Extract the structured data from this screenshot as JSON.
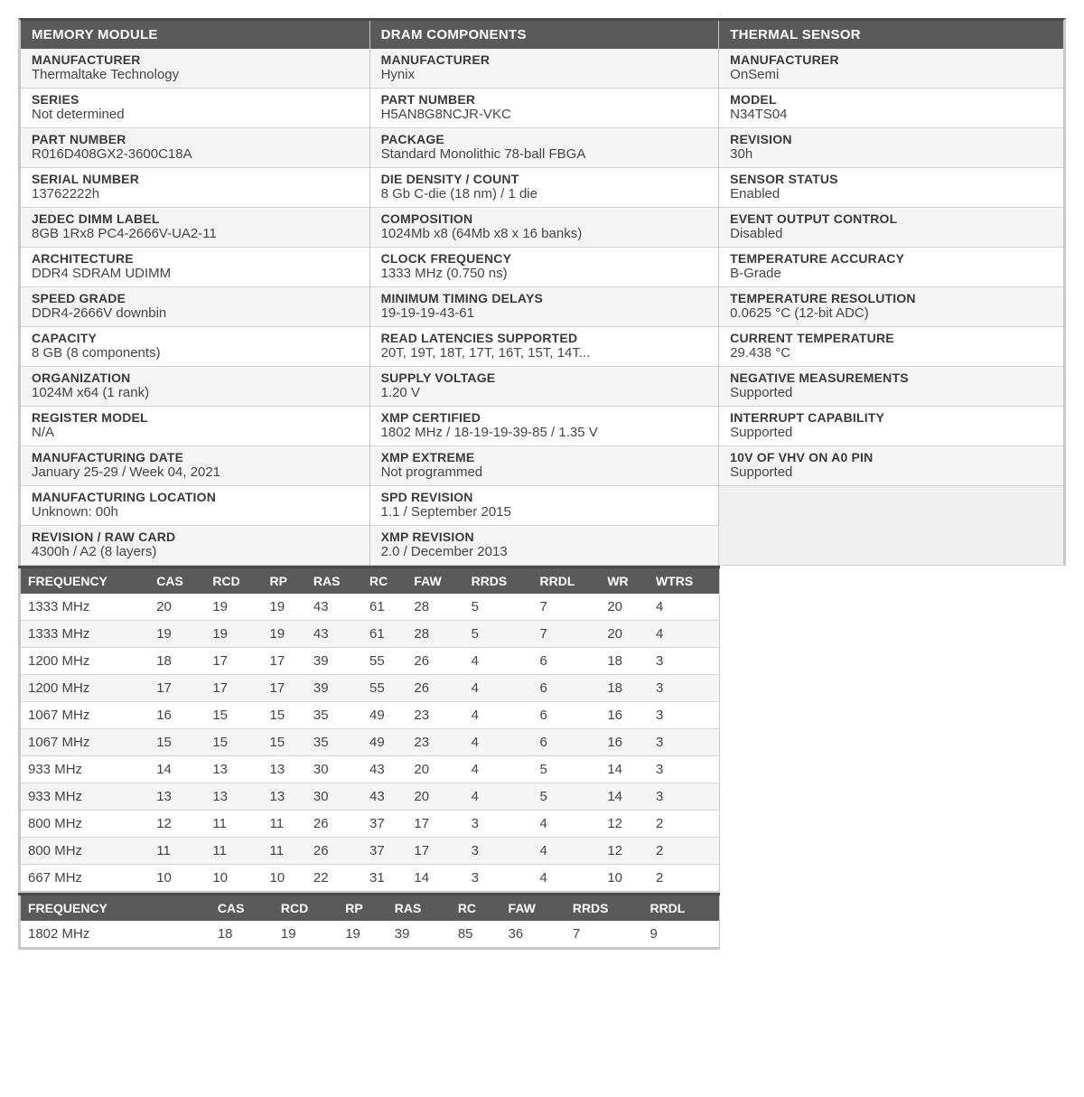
{
  "panels": {
    "memory": {
      "title": "MEMORY MODULE",
      "fields": [
        {
          "label": "MANUFACTURER",
          "value": "Thermaltake Technology"
        },
        {
          "label": "SERIES",
          "value": "Not determined"
        },
        {
          "label": "PART NUMBER",
          "value": "R016D408GX2-3600C18A"
        },
        {
          "label": "SERIAL NUMBER",
          "value": "13762222h"
        },
        {
          "label": "JEDEC DIMM LABEL",
          "value": "8GB 1Rx8 PC4-2666V-UA2-11"
        },
        {
          "label": "ARCHITECTURE",
          "value": "DDR4 SDRAM UDIMM"
        },
        {
          "label": "SPEED GRADE",
          "value": "DDR4-2666V downbin"
        },
        {
          "label": "CAPACITY",
          "value": "8 GB (8 components)"
        },
        {
          "label": "ORGANIZATION",
          "value": "1024M x64 (1 rank)"
        },
        {
          "label": "REGISTER MODEL",
          "value": "N/A"
        },
        {
          "label": "MANUFACTURING DATE",
          "value": "January 25-29 / Week 04, 2021"
        },
        {
          "label": "MANUFACTURING LOCATION",
          "value": "Unknown: 00h"
        },
        {
          "label": "REVISION / RAW CARD",
          "value": "4300h / A2 (8 layers)"
        }
      ]
    },
    "dram": {
      "title": "DRAM COMPONENTS",
      "fields": [
        {
          "label": "MANUFACTURER",
          "value": "Hynix"
        },
        {
          "label": "PART NUMBER",
          "value": "H5AN8G8NCJR-VKC"
        },
        {
          "label": "PACKAGE",
          "value": "Standard Monolithic 78-ball FBGA"
        },
        {
          "label": "DIE DENSITY / COUNT",
          "value": "8 Gb C-die (18 nm) / 1 die"
        },
        {
          "label": "COMPOSITION",
          "value": "1024Mb x8 (64Mb x8 x 16 banks)"
        },
        {
          "label": "CLOCK FREQUENCY",
          "value": "1333 MHz (0.750 ns)"
        },
        {
          "label": "MINIMUM TIMING DELAYS",
          "value": "19-19-19-43-61"
        },
        {
          "label": "READ LATENCIES SUPPORTED",
          "value": "20T, 19T, 18T, 17T, 16T, 15T, 14T..."
        },
        {
          "label": "SUPPLY VOLTAGE",
          "value": "1.20 V"
        },
        {
          "label": "XMP CERTIFIED",
          "value": "1802 MHz / 18-19-19-39-85 / 1.35 V"
        },
        {
          "label": "XMP EXTREME",
          "value": "Not programmed"
        },
        {
          "label": "SPD REVISION",
          "value": "1.1 / September 2015"
        },
        {
          "label": "XMP REVISION",
          "value": "2.0 / December 2013"
        }
      ]
    },
    "thermal": {
      "title": "THERMAL SENSOR",
      "fields": [
        {
          "label": "MANUFACTURER",
          "value": "OnSemi"
        },
        {
          "label": "MODEL",
          "value": "N34TS04"
        },
        {
          "label": "REVISION",
          "value": "30h"
        },
        {
          "label": "SENSOR STATUS",
          "value": "Enabled"
        },
        {
          "label": "EVENT OUTPUT CONTROL",
          "value": "Disabled"
        },
        {
          "label": "TEMPERATURE ACCURACY",
          "value": "B-Grade"
        },
        {
          "label": "TEMPERATURE RESOLUTION",
          "value": "0.0625 °C (12-bit ADC)"
        },
        {
          "label": "CURRENT TEMPERATURE",
          "value": "29.438 °C"
        },
        {
          "label": "NEGATIVE MEASUREMENTS",
          "value": "Supported"
        },
        {
          "label": "INTERRUPT CAPABILITY",
          "value": "Supported"
        },
        {
          "label": "10V OF VHV ON A0 PIN",
          "value": "Supported"
        }
      ]
    }
  },
  "timing_table": {
    "columns": [
      "FREQUENCY",
      "CAS",
      "RCD",
      "RP",
      "RAS",
      "RC",
      "FAW",
      "RRDS",
      "RRDL",
      "WR",
      "WTRS"
    ],
    "rows": [
      [
        "1333 MHz",
        "20",
        "19",
        "19",
        "43",
        "61",
        "28",
        "5",
        "7",
        "20",
        "4"
      ],
      [
        "1333 MHz",
        "19",
        "19",
        "19",
        "43",
        "61",
        "28",
        "5",
        "7",
        "20",
        "4"
      ],
      [
        "1200 MHz",
        "18",
        "17",
        "17",
        "39",
        "55",
        "26",
        "4",
        "6",
        "18",
        "3"
      ],
      [
        "1200 MHz",
        "17",
        "17",
        "17",
        "39",
        "55",
        "26",
        "4",
        "6",
        "18",
        "3"
      ],
      [
        "1067 MHz",
        "16",
        "15",
        "15",
        "35",
        "49",
        "23",
        "4",
        "6",
        "16",
        "3"
      ],
      [
        "1067 MHz",
        "15",
        "15",
        "15",
        "35",
        "49",
        "23",
        "4",
        "6",
        "16",
        "3"
      ],
      [
        "933 MHz",
        "14",
        "13",
        "13",
        "30",
        "43",
        "20",
        "4",
        "5",
        "14",
        "3"
      ],
      [
        "933 MHz",
        "13",
        "13",
        "13",
        "30",
        "43",
        "20",
        "4",
        "5",
        "14",
        "3"
      ],
      [
        "800 MHz",
        "12",
        "11",
        "11",
        "26",
        "37",
        "17",
        "3",
        "4",
        "12",
        "2"
      ],
      [
        "800 MHz",
        "11",
        "11",
        "11",
        "26",
        "37",
        "17",
        "3",
        "4",
        "12",
        "2"
      ],
      [
        "667 MHz",
        "10",
        "10",
        "10",
        "22",
        "31",
        "14",
        "3",
        "4",
        "10",
        "2"
      ]
    ]
  },
  "xmp_table": {
    "columns": [
      "FREQUENCY",
      "",
      "",
      "CAS",
      "RCD",
      "RP",
      "RAS",
      "RC",
      "FAW",
      "RRDS",
      "RRDL"
    ],
    "rows": [
      [
        "1802 MHz",
        "",
        "",
        "18",
        "19",
        "19",
        "39",
        "85",
        "36",
        "7",
        "9"
      ]
    ]
  },
  "colors": {
    "header_bg": "#5a5a5a",
    "header_text": "#ffffff",
    "row_alt_bg": "#f5f5f5",
    "border": "#c8c8c8",
    "text": "#444444"
  }
}
